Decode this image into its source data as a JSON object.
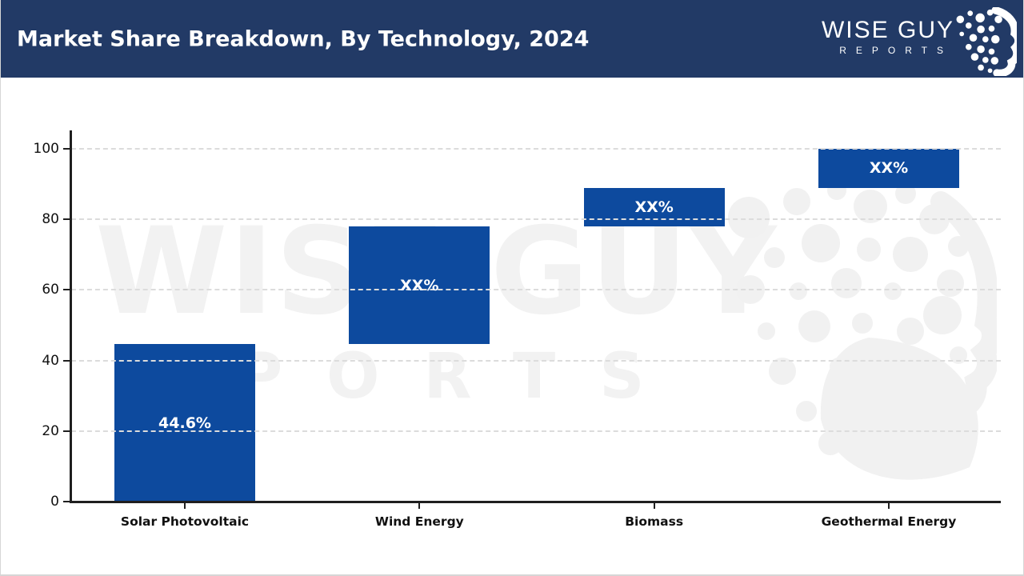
{
  "header": {
    "title": "Market Share Breakdown, By Technology, 2024",
    "logo": {
      "wordmark": "WISE GUY",
      "subtext": "REPORTS"
    }
  },
  "watermark": {
    "wordmark": "WISE GUY",
    "subtext": "PORTS"
  },
  "chart_data": {
    "type": "bar",
    "subtype": "waterfall",
    "title": "Market Share Breakdown, By Technology, 2024",
    "categories": [
      "Solar Photovoltaic",
      "Wind Energy",
      "Biomass",
      "Geothermal Energy"
    ],
    "segments": [
      {
        "category": "Solar Photovoltaic",
        "start": 0,
        "end": 44.6,
        "label": "44.6%"
      },
      {
        "category": "Wind Energy",
        "start": 44.6,
        "end": 78.0,
        "label": "XX%"
      },
      {
        "category": "Biomass",
        "start": 78.0,
        "end": 89.0,
        "label": "XX%"
      },
      {
        "category": "Geothermal Energy",
        "start": 89.0,
        "end": 100.0,
        "label": "XX%"
      }
    ],
    "ylim": [
      0,
      100
    ],
    "yticks": [
      0,
      20,
      40,
      60,
      80,
      100
    ],
    "grid": "horizontal-dashed",
    "legend": "none",
    "colors": {
      "bar": "#0d4a9e",
      "bar_label": "#ffffff",
      "grid": "#dcdcdc",
      "axis": "#1f1f1f",
      "header_bg": "#223a66",
      "watermark": "#f2f2f2"
    }
  }
}
